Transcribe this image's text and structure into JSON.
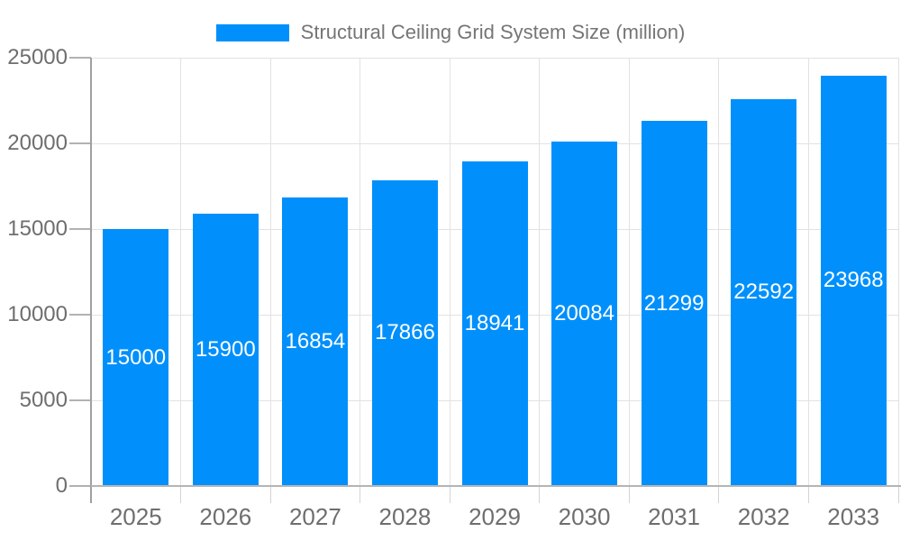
{
  "chart_data": {
    "type": "bar",
    "title": "Structural Ceiling Grid System Size (million)",
    "legend": {
      "label": "Structural Ceiling Grid System Size (million)",
      "position": "top"
    },
    "categories": [
      "2025",
      "2026",
      "2027",
      "2028",
      "2029",
      "2030",
      "2031",
      "2032",
      "2033"
    ],
    "values": [
      15000,
      15900,
      16854,
      17866,
      18941,
      20084,
      21299,
      22592,
      23968
    ],
    "xlabel": "",
    "ylabel": "",
    "ylim": [
      0,
      25000
    ],
    "y_ticks": [
      0,
      5000,
      10000,
      15000,
      20000,
      25000
    ],
    "grid": true,
    "value_label_position": "inside-center"
  },
  "colors": {
    "bar": "#0190FB",
    "value_label": "#FFFFFF",
    "axis_label": "#6E6E6E",
    "legend_text": "#757575",
    "gridline": "#E2E2E2",
    "x_tick": "#D4D4D4",
    "y_tick": "#B2B2B2",
    "y_axis_line": "#A0A0A0",
    "x_axis_line": "#B5B5B5",
    "background": "#FFFFFF"
  }
}
